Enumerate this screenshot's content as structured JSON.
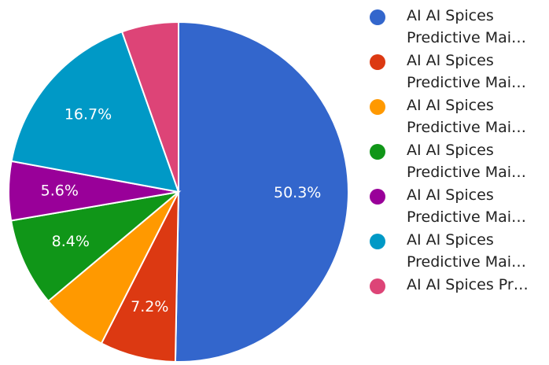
{
  "chart_data": {
    "type": "pie",
    "categories": [
      "AI AI Spices Predictive Mai…",
      "AI AI Spices Predictive Mai…",
      "AI AI Spices Predictive Mai…",
      "AI AI Spices Predictive Mai…",
      "AI AI Spices Predictive Mai…",
      "AI AI Spices Predictive Mai…",
      "AI AI Spices Pr…"
    ],
    "values": [
      50.3,
      7.2,
      6.4,
      8.4,
      5.6,
      16.7,
      5.4
    ],
    "value_labels": [
      "50.3%",
      "7.2%",
      null,
      "8.4%",
      "5.6%",
      "16.7%",
      null
    ],
    "colors": [
      "#3366cc",
      "#dc3912",
      "#ff9900",
      "#109618",
      "#990099",
      "#0099c6",
      "#dd4477"
    ]
  }
}
